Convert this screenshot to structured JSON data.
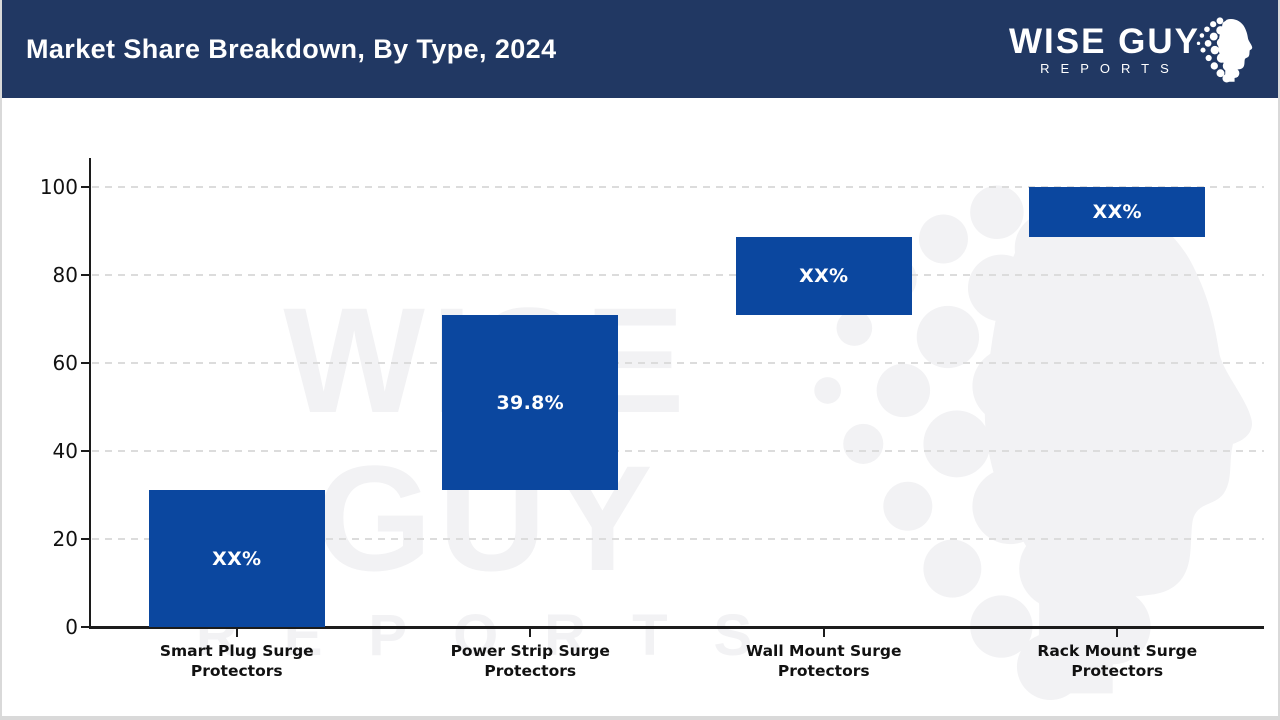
{
  "theme": {
    "header_bg": "#213863",
    "bar_color": "#0B479F",
    "grid_color": "#dcdcdc",
    "axis_color": "#1c1c1c",
    "text_color": "#111111",
    "watermark_color": "#f2f2f4",
    "page_border_color": "#d9d9d9"
  },
  "header": {
    "title": "Market Share Breakdown, By Type, 2024",
    "logo_word": "WISE GUY",
    "logo_sub": "REPORTS"
  },
  "watermark": {
    "line1": "WISE GUY",
    "line2": "REPORTS"
  },
  "chart_data": {
    "type": "bar",
    "subtype": "floating-waterfall",
    "title": "Market Share Breakdown, By Type, 2024",
    "categories": [
      "Smart Plug Surge Protectors",
      "Power Strip Surge Protectors",
      "Wall Mount Surge Protectors",
      "Rack Mount Surge Protectors"
    ],
    "categories_lines": [
      [
        "Smart Plug Surge",
        "Protectors"
      ],
      [
        "Power Strip Surge",
        "Protectors"
      ],
      [
        "Wall Mount Surge",
        "Protectors"
      ],
      [
        "Rack Mount Surge",
        "Protectors"
      ]
    ],
    "segments": [
      {
        "category": "Smart Plug Surge Protectors",
        "start": 0,
        "end": 31.1,
        "label": "XX%"
      },
      {
        "category": "Power Strip Surge Protectors",
        "start": 31.1,
        "end": 70.9,
        "label": "39.8%"
      },
      {
        "category": "Wall Mount Surge Protectors",
        "start": 70.9,
        "end": 88.6,
        "label": "XX%"
      },
      {
        "category": "Rack Mount Surge Protectors",
        "start": 88.6,
        "end": 100,
        "label": "XX%"
      }
    ],
    "ylim": [
      0,
      100
    ],
    "yticks": [
      0,
      20,
      40,
      60,
      80,
      100
    ],
    "xlabel": "",
    "ylabel": "",
    "grid": "horizontal-dashed",
    "legend": "none",
    "bar_color": "#0B479F",
    "bar_label_color": "#ffffff"
  }
}
